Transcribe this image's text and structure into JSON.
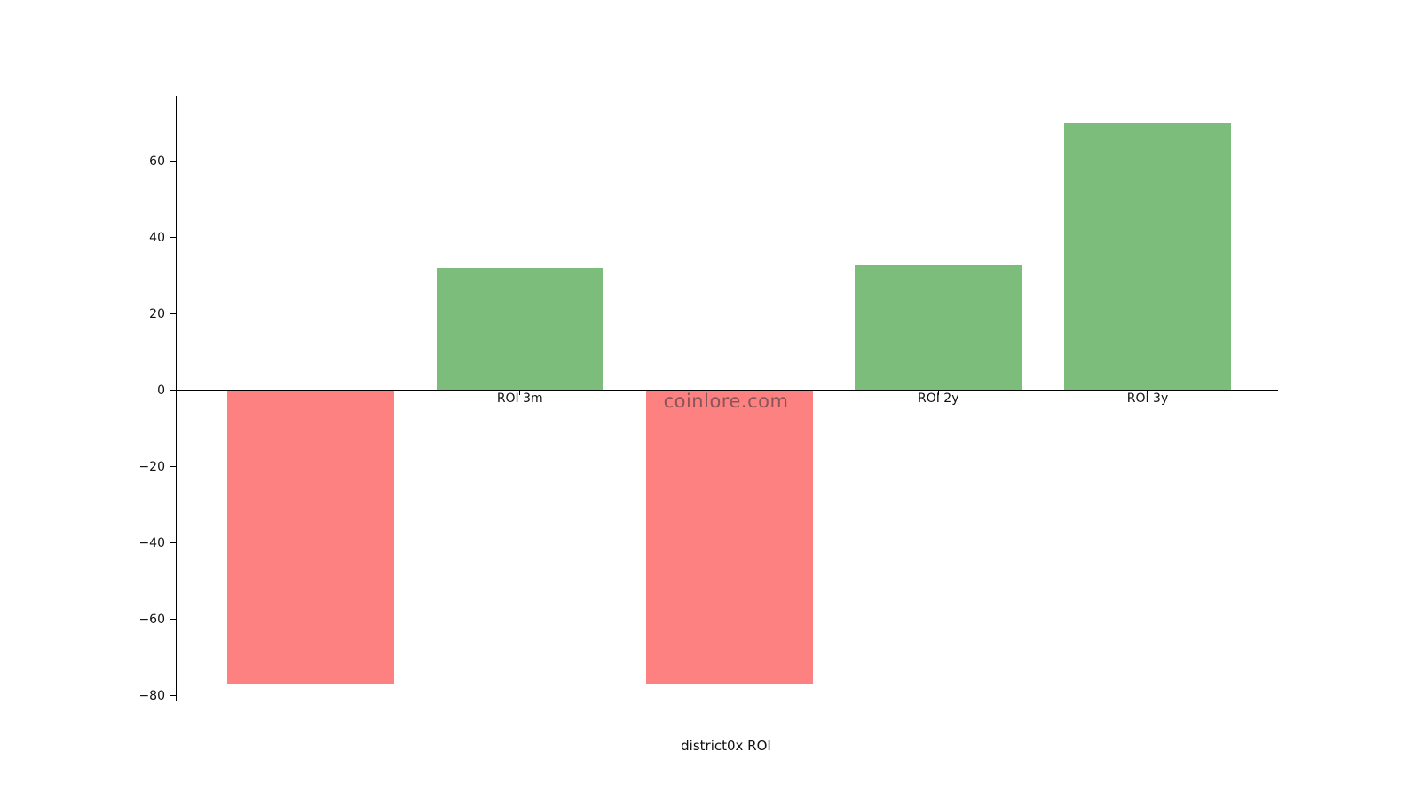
{
  "page": {
    "background_color": "#ffffff",
    "text_color": "#111111",
    "axis_color": "#000000"
  },
  "watermark": {
    "text": "coinlore.com",
    "color": "#8a5458"
  },
  "chart_data": {
    "type": "bar",
    "title": "",
    "xlabel": "district0x ROI",
    "ylabel": "",
    "categories": [
      "",
      "ROI 3m",
      "",
      "ROI 2y",
      "ROI 3y"
    ],
    "x_tick_labels_visible": [
      false,
      true,
      false,
      true,
      true
    ],
    "values": [
      -77,
      32,
      -77,
      33,
      70
    ],
    "positive_color": "#7cbd7b",
    "negative_color": "#fd8181",
    "bar_colors": [
      "#fd8181",
      "#7cbd7b",
      "#fd8181",
      "#7cbd7b",
      "#7cbd7b"
    ],
    "ylim": [
      -81,
      77
    ],
    "y_ticks": [
      60,
      40,
      20,
      0,
      -20,
      -40,
      -60,
      -80
    ],
    "y_tick_labels": [
      "60",
      "40",
      "20",
      "0",
      "−20",
      "−40",
      "−60",
      "−80"
    ],
    "grid": false,
    "legend": null
  }
}
